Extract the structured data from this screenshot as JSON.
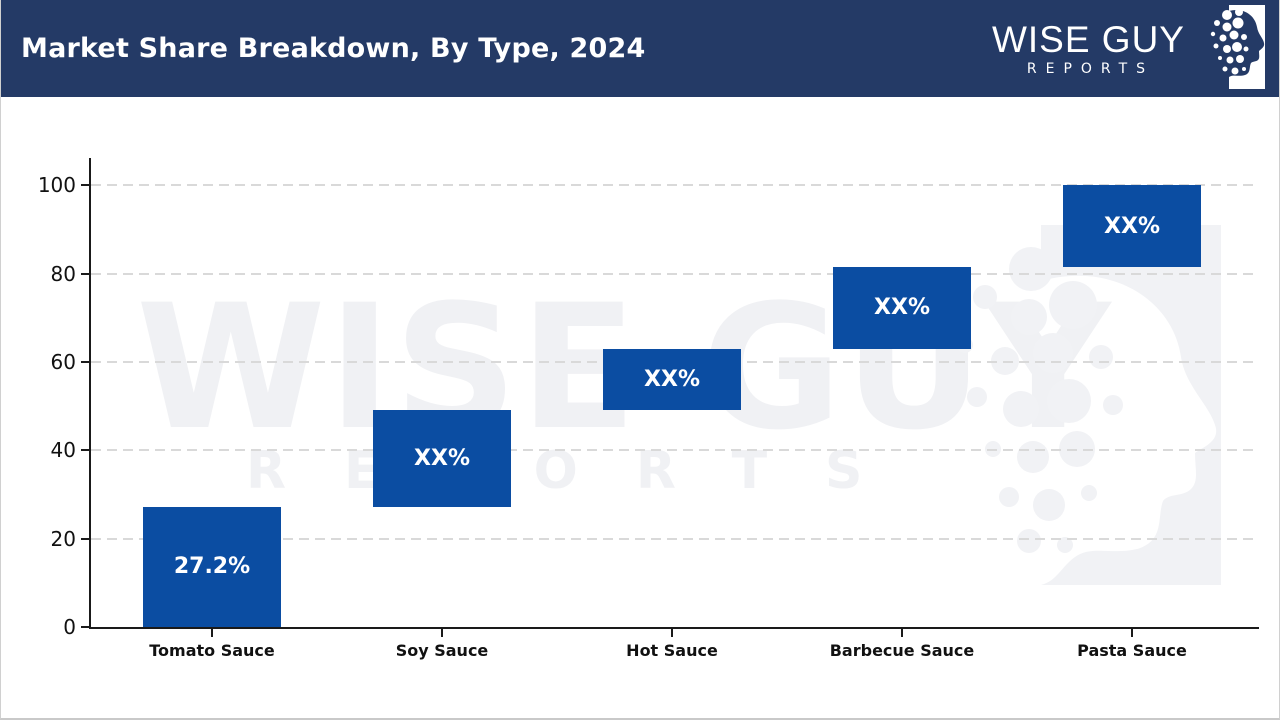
{
  "header": {
    "title": "Market Share Breakdown, By Type, 2024",
    "logo_line1": "WISE GUY",
    "logo_line2": "REPORTS"
  },
  "watermark": {
    "line1": "WISE GUY",
    "line2": "REPORTS"
  },
  "colors": {
    "header_bg": "#243a66",
    "bar": "#0b4da2",
    "grid": "#d9d9d9",
    "axis": "#1a1a1a",
    "watermark": "#f0f1f4",
    "title_text": "#ffffff",
    "bar_label_text": "#ffffff"
  },
  "chart_data": {
    "type": "bar",
    "subtype": "waterfall",
    "title": "Market Share Breakdown, By Type, 2024",
    "categories": [
      "Tomato Sauce",
      "Soy Sauce",
      "Hot Sauce",
      "Barbecue Sauce",
      "Pasta Sauce"
    ],
    "segments": [
      {
        "category": "Tomato Sauce",
        "start": 0,
        "end": 27.2,
        "label": "27.2%"
      },
      {
        "category": "Soy Sauce",
        "start": 27.2,
        "end": 49.2,
        "label": "XX%"
      },
      {
        "category": "Hot Sauce",
        "start": 49.2,
        "end": 63.0,
        "label": "XX%"
      },
      {
        "category": "Barbecue Sauce",
        "start": 63.0,
        "end": 81.5,
        "label": "XX%"
      },
      {
        "category": "Pasta Sauce",
        "start": 81.5,
        "end": 100,
        "label": "XX%"
      }
    ],
    "y_ticks": [
      0,
      20,
      40,
      60,
      80,
      100
    ],
    "ylim": [
      0,
      105
    ],
    "xlabel": "",
    "ylabel": "",
    "grid": "horizontal-dashed",
    "legend": "none"
  }
}
